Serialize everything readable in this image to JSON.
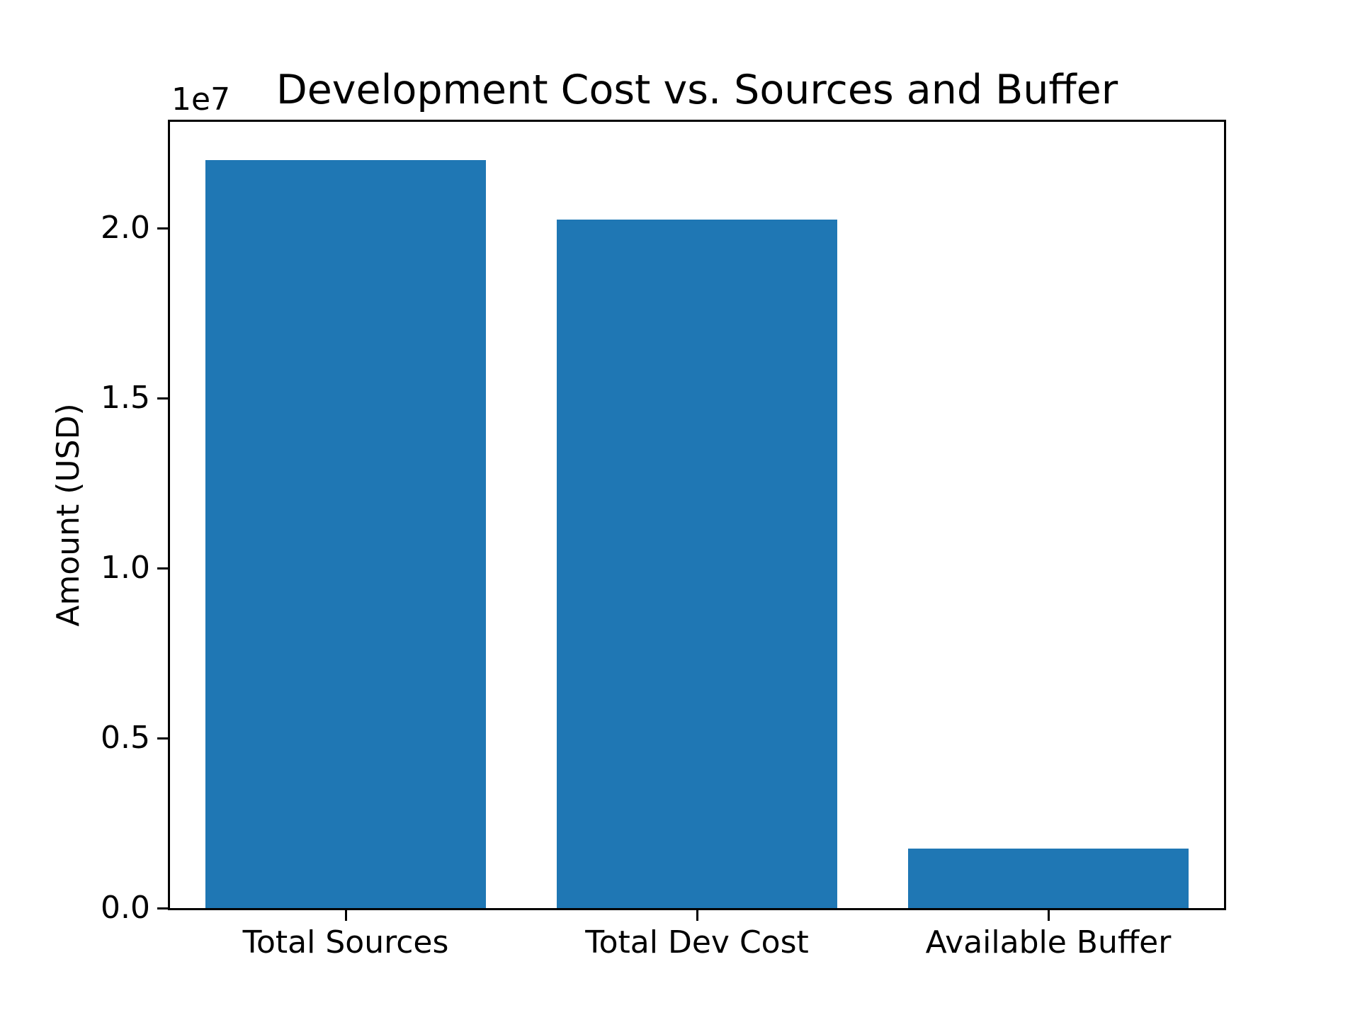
{
  "figure": {
    "background": "#ffffff"
  },
  "chart_data": {
    "type": "bar",
    "title": "Development Cost vs. Sources and Buffer",
    "ylabel": "Amount (USD)",
    "xlabel": "",
    "offset_text": "1e7",
    "categories": [
      "Total Sources",
      "Total Dev Cost",
      "Available Buffer"
    ],
    "values": [
      22000000,
      20250000,
      1750000
    ],
    "bar_color": "#1f77b4",
    "axis_color": "#000000",
    "ylim": [
      0,
      23125000
    ],
    "yticks": [
      0,
      5000000,
      10000000,
      15000000,
      20000000
    ],
    "ytick_labels": [
      "0.0",
      "0.5",
      "1.0",
      "1.5",
      "2.0"
    ],
    "xlim": [
      -0.5,
      2.5
    ],
    "x_positions": [
      0,
      1,
      2
    ],
    "bar_width": 0.8,
    "grid": false,
    "legend": null
  }
}
